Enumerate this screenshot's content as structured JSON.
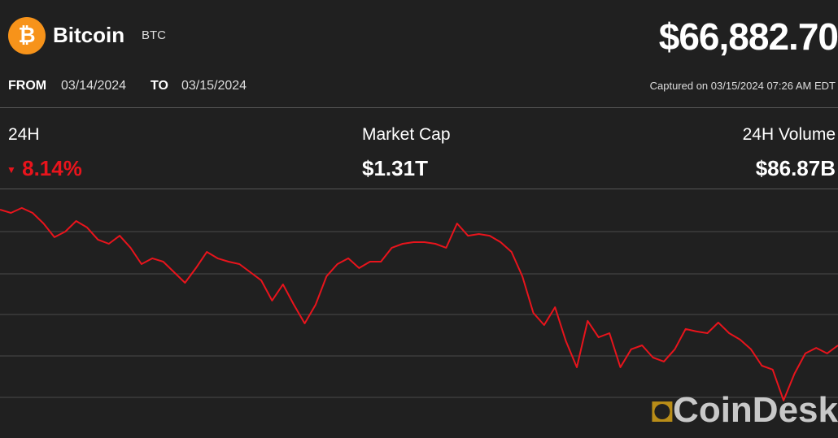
{
  "header": {
    "name": "Bitcoin",
    "symbol": "BTC",
    "price": "$66,882.70",
    "from_label": "FROM",
    "from_date": "03/14/2024",
    "to_label": "TO",
    "to_date": "03/15/2024",
    "captured": "Captured on 03/15/2024 07:26 AM EDT"
  },
  "stats": [
    {
      "label": "24H",
      "value": "8.14%"
    },
    {
      "label": "Market Cap",
      "value": "$1.31T"
    },
    {
      "label": "24H Volume",
      "value": "$86.87B"
    }
  ],
  "brand": "CoinDesk",
  "chart_data": {
    "type": "line",
    "color": "#e8141c",
    "ylim": [
      62040,
      73960
    ],
    "values": [
      73060,
      72900,
      73140,
      72900,
      72390,
      71730,
      72000,
      72510,
      72200,
      71610,
      71410,
      71800,
      71220,
      70430,
      70710,
      70550,
      70040,
      69530,
      70240,
      71020,
      70710,
      70550,
      70430,
      70040,
      69650,
      68670,
      69450,
      68470,
      67570,
      68470,
      69840,
      70430,
      70710,
      70240,
      70550,
      70550,
      71220,
      71410,
      71490,
      71490,
      71410,
      71220,
      72390,
      71800,
      71880,
      71800,
      71490,
      71020,
      69840,
      68080,
      67490,
      68350,
      66710,
      65450,
      67690,
      66900,
      67100,
      65450,
      66320,
      66510,
      65920,
      65730,
      66320,
      67300,
      67180,
      67100,
      67610,
      67100,
      66790,
      66320,
      65530,
      65340,
      63850,
      65140,
      66120,
      66390,
      66120,
      66510
    ]
  }
}
